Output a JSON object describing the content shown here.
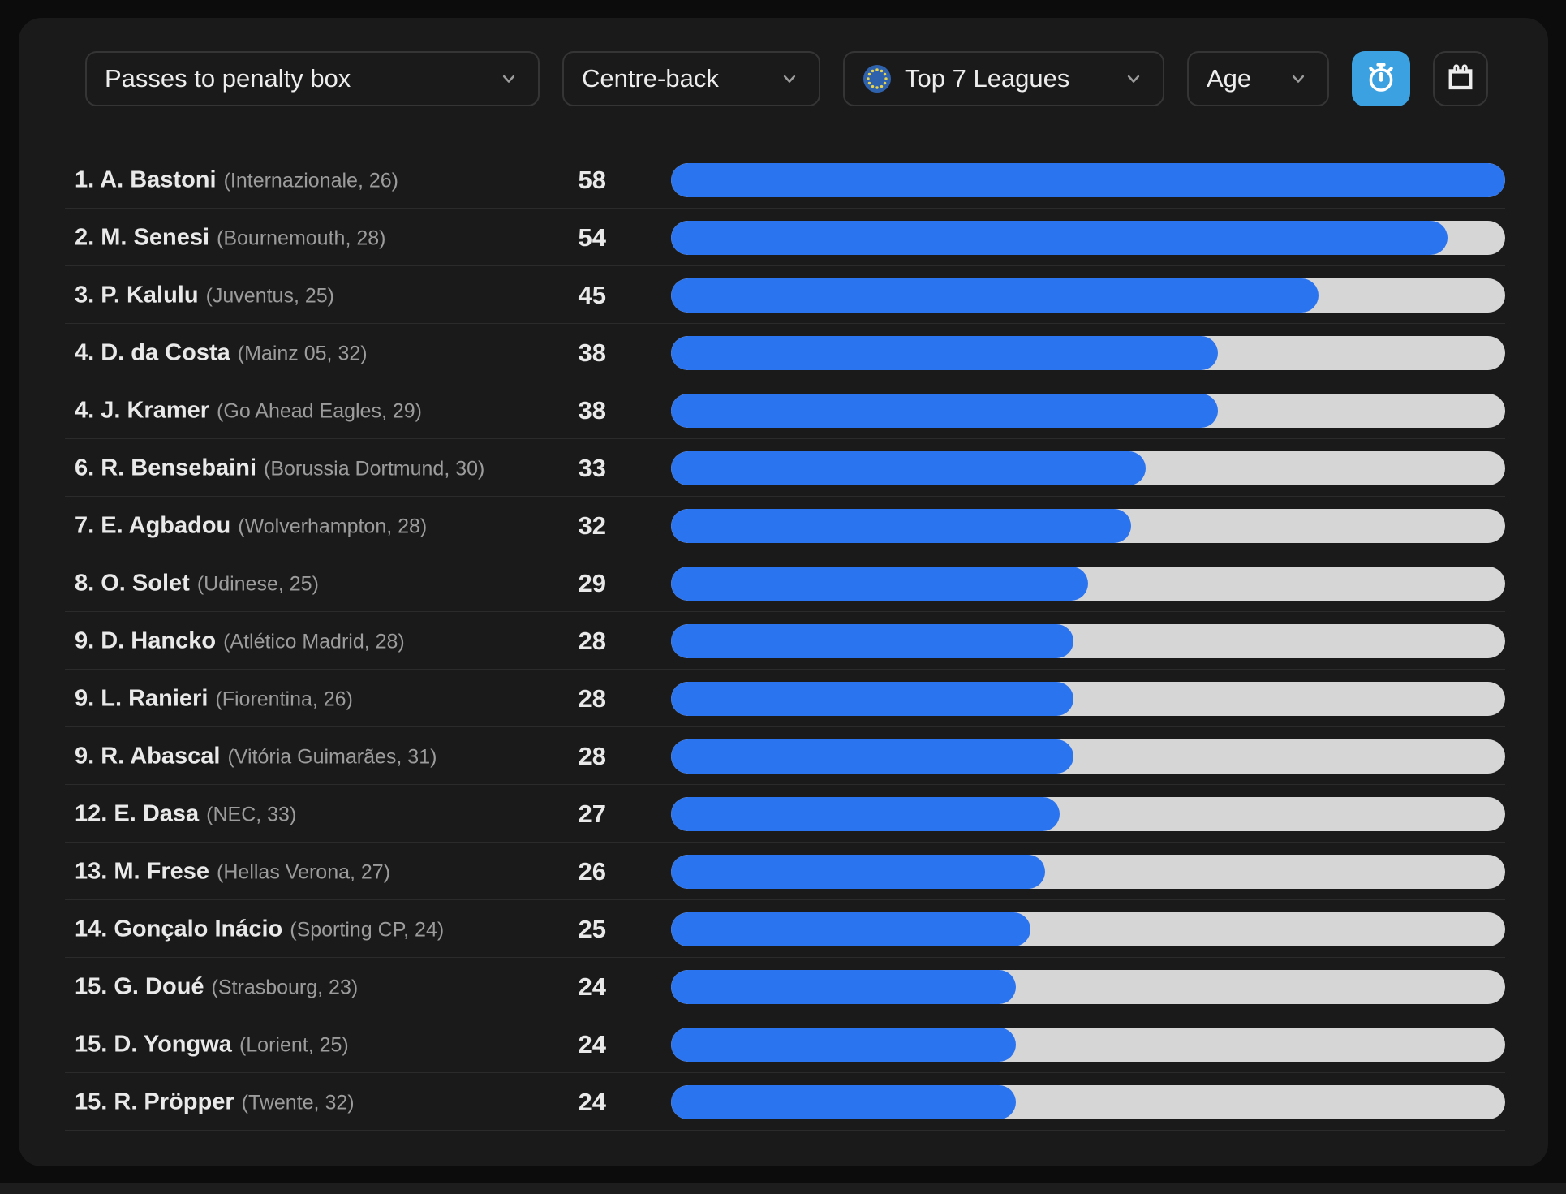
{
  "filters": {
    "metric": {
      "label": "Passes to penalty box"
    },
    "position": {
      "label": "Centre-back"
    },
    "league": {
      "label": "Top 7 Leagues",
      "icon": "eu-flag-icon"
    },
    "age": {
      "label": "Age"
    }
  },
  "toolbar": {
    "timer_button": {
      "icon": "stopwatch-icon",
      "active": true
    },
    "calendar_button": {
      "icon": "calendar-icon",
      "active": false
    }
  },
  "leaderboard": {
    "max_value": 58,
    "rows": [
      {
        "rank": 1,
        "name": "A. Bastoni",
        "club": "Internazionale",
        "age": 26,
        "value": 58
      },
      {
        "rank": 2,
        "name": "M. Senesi",
        "club": "Bournemouth",
        "age": 28,
        "value": 54
      },
      {
        "rank": 3,
        "name": "P. Kalulu",
        "club": "Juventus",
        "age": 25,
        "value": 45
      },
      {
        "rank": 4,
        "name": "D. da Costa",
        "club": "Mainz 05",
        "age": 32,
        "value": 38
      },
      {
        "rank": 4,
        "name": "J. Kramer",
        "club": "Go Ahead Eagles",
        "age": 29,
        "value": 38
      },
      {
        "rank": 6,
        "name": "R. Bensebaini",
        "club": "Borussia Dortmund",
        "age": 30,
        "value": 33
      },
      {
        "rank": 7,
        "name": "E. Agbadou",
        "club": "Wolverhampton",
        "age": 28,
        "value": 32
      },
      {
        "rank": 8,
        "name": "O. Solet",
        "club": "Udinese",
        "age": 25,
        "value": 29
      },
      {
        "rank": 9,
        "name": "D. Hancko",
        "club": "Atlético Madrid",
        "age": 28,
        "value": 28
      },
      {
        "rank": 9,
        "name": "L. Ranieri",
        "club": "Fiorentina",
        "age": 26,
        "value": 28
      },
      {
        "rank": 9,
        "name": "R. Abascal",
        "club": "Vitória Guimarães",
        "age": 31,
        "value": 28
      },
      {
        "rank": 12,
        "name": "E. Dasa",
        "club": "NEC",
        "age": 33,
        "value": 27
      },
      {
        "rank": 13,
        "name": "M. Frese",
        "club": "Hellas Verona",
        "age": 27,
        "value": 26
      },
      {
        "rank": 14,
        "name": "Gonçalo Inácio",
        "club": "Sporting CP",
        "age": 24,
        "value": 25
      },
      {
        "rank": 15,
        "name": "G. Doué",
        "club": "Strasbourg",
        "age": 23,
        "value": 24
      },
      {
        "rank": 15,
        "name": "D. Yongwa",
        "club": "Lorient",
        "age": 25,
        "value": 24
      },
      {
        "rank": 15,
        "name": "R. Pröpper",
        "club": "Twente",
        "age": 32,
        "value": 24
      }
    ]
  },
  "colors": {
    "page_bg": "#0C0C0C",
    "card_bg": "#1A1A1A",
    "bar_fill": "#2B74F0",
    "bar_track": "#D6D6D6",
    "active_button": "#3BA1E0"
  }
}
